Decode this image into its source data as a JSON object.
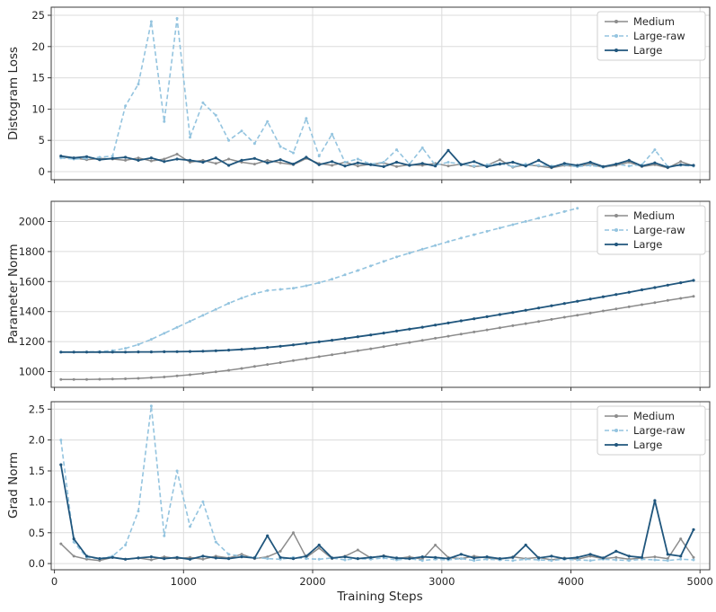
{
  "chart_data": {
    "type": "line",
    "title": "",
    "xlabel": "Training Steps",
    "xlim": [
      -25,
      5075
    ],
    "grid": true,
    "legend_position": "upper right",
    "background": "#ffffff",
    "grid_color": "#dcdcdc",
    "spine_color": "#3b3b3b",
    "xticks": {
      "values": [
        0,
        1000,
        2000,
        3000,
        4000,
        5000
      ],
      "labels": [
        "0",
        "1000",
        "2000",
        "3000",
        "4000",
        "5000"
      ]
    },
    "series": [
      {
        "name": "Medium",
        "color": "#8c8c8c",
        "dash": "solid",
        "width": 1.5,
        "marker_r": 1.5
      },
      {
        "name": "Large-raw",
        "color": "#94c4df",
        "dash": "dashed",
        "width": 1.6,
        "marker_r": 1.5
      },
      {
        "name": "Large",
        "color": "#20567d",
        "dash": "solid",
        "width": 1.8,
        "marker_r": 1.6
      }
    ],
    "x": [
      50,
      150,
      250,
      350,
      450,
      550,
      650,
      750,
      850,
      950,
      1050,
      1150,
      1250,
      1350,
      1450,
      1550,
      1650,
      1750,
      1850,
      1950,
      2050,
      2150,
      2250,
      2350,
      2450,
      2550,
      2650,
      2750,
      2850,
      2950,
      3050,
      3150,
      3250,
      3350,
      3450,
      3550,
      3650,
      3750,
      3850,
      3950,
      4050,
      4150,
      4250,
      4350,
      4450,
      4550,
      4650,
      4750,
      4850,
      4950
    ],
    "subplots": [
      {
        "name": "distogram-loss",
        "ylabel": "Distogram Loss",
        "ylim": [
          -1.3,
          26.3
        ],
        "yticks": {
          "values": [
            0,
            5,
            10,
            15,
            20,
            25
          ],
          "labels": [
            "0",
            "5",
            "10",
            "15",
            "20",
            "25"
          ]
        },
        "values": {
          "Medium": [
            2.3,
            2.2,
            1.9,
            2.1,
            2.0,
            1.8,
            2.2,
            1.7,
            2.0,
            2.8,
            1.5,
            1.8,
            1.3,
            2.0,
            1.5,
            1.2,
            1.8,
            1.4,
            1.1,
            2.1,
            1.3,
            1.0,
            1.5,
            0.9,
            1.2,
            1.4,
            0.8,
            1.1,
            1.0,
            1.3,
            0.9,
            1.2,
            0.8,
            1.0,
            1.9,
            0.7,
            1.1,
            0.9,
            0.6,
            1.0,
            0.8,
            1.2,
            0.7,
            1.0,
            1.5,
            0.8,
            1.1,
            0.6,
            1.6,
            0.9
          ],
          "Large-raw": [
            2.2,
            2.0,
            2.1,
            2.3,
            2.5,
            10.5,
            14.0,
            24.0,
            8.0,
            24.5,
            5.5,
            11.0,
            9.0,
            5.0,
            6.5,
            4.5,
            8.0,
            4.0,
            3.0,
            8.5,
            2.5,
            6.0,
            1.5,
            2.0,
            1.2,
            1.5,
            3.5,
            1.2,
            3.8,
            1.0,
            1.5,
            1.2,
            0.9,
            1.1,
            1.3,
            0.8,
            1.2,
            1.0,
            0.9,
            1.1,
            0.8,
            1.0,
            0.7,
            1.2,
            0.9,
            1.1,
            3.5,
            0.8,
            1.0,
            0.9
          ],
          "Large": [
            2.5,
            2.2,
            2.4,
            1.9,
            2.1,
            2.3,
            1.8,
            2.2,
            1.6,
            2.0,
            1.8,
            1.5,
            2.2,
            1.0,
            1.8,
            2.1,
            1.4,
            1.9,
            1.2,
            2.3,
            1.1,
            1.6,
            0.9,
            1.4,
            1.1,
            0.8,
            1.5,
            1.0,
            1.3,
            0.9,
            3.4,
            1.1,
            1.6,
            0.8,
            1.2,
            1.5,
            0.9,
            1.8,
            0.7,
            1.3,
            1.0,
            1.5,
            0.8,
            1.2,
            1.8,
            0.9,
            1.4,
            0.7,
            1.1,
            1.0
          ]
        }
      },
      {
        "name": "parameter-norm",
        "ylabel": "Parameter Norm",
        "ylim": [
          895,
          2135
        ],
        "yticks": {
          "values": [
            1000,
            1200,
            1400,
            1600,
            1800,
            2000
          ],
          "labels": [
            "1000",
            "1200",
            "1400",
            "1600",
            "1800",
            "2000"
          ]
        },
        "values": {
          "Medium": [
            948,
            948,
            948,
            949,
            950,
            952,
            955,
            959,
            964,
            971,
            979,
            988,
            998,
            1009,
            1021,
            1034,
            1047,
            1060,
            1073,
            1086,
            1099,
            1112,
            1125,
            1139,
            1152,
            1166,
            1180,
            1194,
            1208,
            1222,
            1236,
            1250,
            1264,
            1278,
            1292,
            1306,
            1320,
            1334,
            1348,
            1362,
            1376,
            1390,
            1404,
            1418,
            1432,
            1446,
            1460,
            1474,
            1488,
            1502
          ],
          "Large-raw": [
            1130,
            1130,
            1131,
            1133,
            1140,
            1155,
            1180,
            1215,
            1255,
            1295,
            1335,
            1375,
            1415,
            1455,
            1490,
            1520,
            1540,
            1548,
            1556,
            1572,
            1592,
            1616,
            1645,
            1674,
            1704,
            1734,
            1764,
            1790,
            1816,
            1841,
            1866,
            1890,
            1913,
            1935,
            1957,
            1979,
            2001,
            2023,
            2045,
            2067,
            2089,
            null,
            null,
            null,
            null,
            null,
            null,
            null,
            null,
            null
          ],
          "Large": [
            1130,
            1130,
            1130,
            1130,
            1130,
            1130,
            1131,
            1131,
            1132,
            1133,
            1134,
            1136,
            1139,
            1143,
            1148,
            1154,
            1161,
            1169,
            1178,
            1188,
            1198,
            1209,
            1220,
            1232,
            1244,
            1257,
            1270,
            1283,
            1296,
            1310,
            1324,
            1338,
            1352,
            1366,
            1380,
            1394,
            1409,
            1424,
            1439,
            1454,
            1469,
            1484,
            1499,
            1514,
            1529,
            1545,
            1560,
            1576,
            1592,
            1608
          ]
        }
      },
      {
        "name": "grad-norm",
        "ylabel": "Grad Norm",
        "ylim": [
          -0.1,
          2.62
        ],
        "yticks": {
          "values": [
            0,
            0.5,
            1,
            1.5,
            2,
            2.5
          ],
          "labels": [
            "0.0",
            "0.5",
            "1.0",
            "1.5",
            "2.0",
            "2.5"
          ]
        },
        "values": {
          "Medium": [
            0.32,
            0.12,
            0.07,
            0.05,
            0.1,
            0.07,
            0.09,
            0.06,
            0.11,
            0.08,
            0.1,
            0.07,
            0.12,
            0.09,
            0.15,
            0.08,
            0.11,
            0.2,
            0.5,
            0.1,
            0.25,
            0.08,
            0.12,
            0.22,
            0.09,
            0.13,
            0.08,
            0.11,
            0.07,
            0.3,
            0.1,
            0.08,
            0.12,
            0.09,
            0.07,
            0.11,
            0.08,
            0.1,
            0.06,
            0.09,
            0.07,
            0.12,
            0.08,
            0.1,
            0.07,
            0.09,
            0.11,
            0.08,
            0.4,
            0.1
          ],
          "Large-raw": [
            2.0,
            0.35,
            0.1,
            0.08,
            0.12,
            0.3,
            0.85,
            2.55,
            0.45,
            1.5,
            0.6,
            1.0,
            0.35,
            0.15,
            0.12,
            0.1,
            0.08,
            0.07,
            0.1,
            0.08,
            0.07,
            0.09,
            0.06,
            0.08,
            0.07,
            0.09,
            0.06,
            0.08,
            0.05,
            0.07,
            0.06,
            0.08,
            0.05,
            0.07,
            0.06,
            0.05,
            0.07,
            0.06,
            0.05,
            0.07,
            0.06,
            0.05,
            0.07,
            0.06,
            0.05,
            0.07,
            0.06,
            0.05,
            0.07,
            0.06
          ],
          "Large": [
            1.6,
            0.4,
            0.12,
            0.08,
            0.1,
            0.07,
            0.09,
            0.11,
            0.08,
            0.1,
            0.07,
            0.12,
            0.09,
            0.08,
            0.11,
            0.09,
            0.45,
            0.1,
            0.08,
            0.12,
            0.3,
            0.09,
            0.11,
            0.08,
            0.1,
            0.12,
            0.09,
            0.08,
            0.11,
            0.1,
            0.08,
            0.15,
            0.09,
            0.11,
            0.08,
            0.1,
            0.3,
            0.09,
            0.12,
            0.08,
            0.1,
            0.15,
            0.09,
            0.2,
            0.12,
            0.1,
            1.02,
            0.15,
            0.12,
            0.55
          ]
        }
      }
    ]
  }
}
